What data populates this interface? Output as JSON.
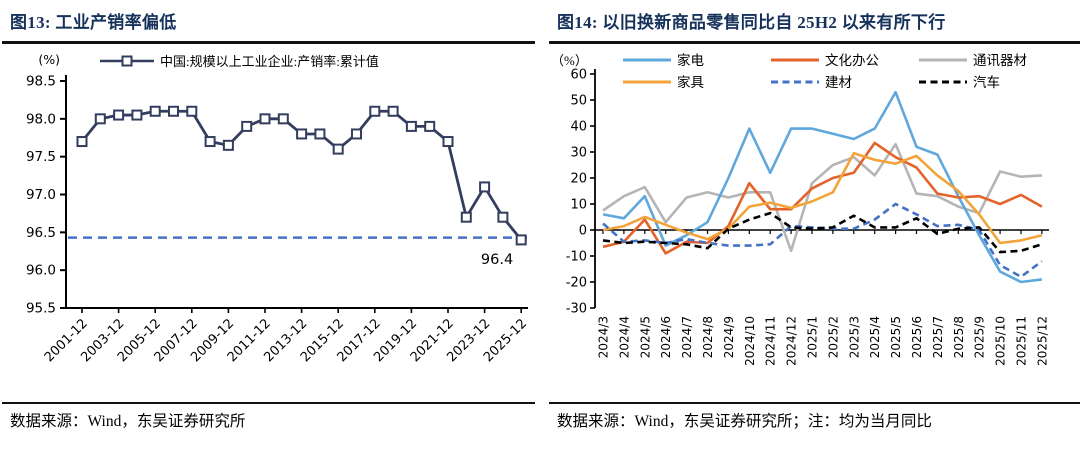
{
  "page": {
    "figures": [
      {
        "title": "图13:  工业产销率偏低",
        "source": "数据来源：Wind，东吴证券研究所"
      },
      {
        "title": "图14:  以旧换新商品零售同比自 25H2 以来有所下行",
        "source": "数据来源：Wind，东吴证券研究所；注：均为当月同比"
      }
    ]
  },
  "chart_data": [
    {
      "type": "line",
      "title": "工业产销率偏低",
      "ylabel": "(%)",
      "ylim": [
        95.5,
        98.5
      ],
      "yticks": [
        98.5,
        98.0,
        97.5,
        97.0,
        96.5,
        96.0,
        95.5
      ],
      "grid": false,
      "legend_position": "top",
      "categories": [
        "2001-12",
        "2002-12",
        "2003-12",
        "2004-12",
        "2005-12",
        "2006-12",
        "2007-12",
        "2008-12",
        "2009-12",
        "2010-12",
        "2011-12",
        "2012-12",
        "2013-12",
        "2014-12",
        "2015-12",
        "2016-12",
        "2017-12",
        "2018-12",
        "2019-12",
        "2020-12",
        "2021-12",
        "2022-12",
        "2023-12",
        "2024-12",
        "2025-12"
      ],
      "xtick_every": 2,
      "series": [
        {
          "name": "中国:规模以上工业企业:产销率:累计值",
          "color": "#333D5E",
          "marker": "square",
          "values": [
            97.7,
            98.0,
            98.05,
            98.05,
            98.1,
            98.1,
            98.1,
            97.7,
            97.65,
            97.9,
            98.0,
            98.0,
            97.8,
            97.8,
            97.6,
            97.8,
            98.1,
            98.1,
            97.9,
            97.9,
            97.7,
            96.7,
            97.1,
            96.7,
            96.4
          ]
        }
      ],
      "reference_line": {
        "value": 96.43,
        "style": "dashed",
        "color": "#4472C4"
      },
      "annotation": {
        "text": "96.4",
        "at_category": "2025-12",
        "value": 96.4
      }
    },
    {
      "type": "line",
      "title": "以旧换新商品零售同比自 25H2 以来有所下行",
      "ylabel": "（%）",
      "ylim": [
        -30,
        60
      ],
      "yticks": [
        60,
        50,
        40,
        30,
        20,
        10,
        0,
        -10,
        -20,
        -30
      ],
      "grid": false,
      "legend_position": "top",
      "legend_rows": [
        [
          "家电",
          "文化办公",
          "通讯器材"
        ],
        [
          "家具",
          "建材",
          "汽车"
        ]
      ],
      "categories": [
        "2024/3",
        "2024/4",
        "2024/5",
        "2024/6",
        "2024/7",
        "2024/8",
        "2024/9",
        "2024/10",
        "2024/11",
        "2024/12",
        "2025/1",
        "2025/2",
        "2025/3",
        "2025/4",
        "2025/5",
        "2025/6",
        "2025/7",
        "2025/8",
        "2025/9",
        "2025/10",
        "2025/11",
        "2025/12"
      ],
      "series": [
        {
          "name": "家电",
          "color": "#5FA8DE",
          "dash": "solid",
          "values": [
            6,
            4.5,
            13,
            -6,
            -2,
            3,
            20,
            39,
            22,
            39,
            39,
            37,
            35,
            39,
            53,
            32,
            29,
            13,
            -2,
            -16,
            -20,
            -19
          ]
        },
        {
          "name": "文化办公",
          "color": "#E4632A",
          "dash": "solid",
          "values": [
            -6.5,
            -4.5,
            4,
            -9,
            -4.5,
            -5,
            1.5,
            18,
            8,
            8,
            16,
            20,
            22,
            33.5,
            28,
            24,
            14,
            12.5,
            13,
            10,
            13.5,
            9
          ]
        },
        {
          "name": "通讯器材",
          "color": "#B5B5B5",
          "dash": "solid",
          "values": [
            7.5,
            13,
            16.5,
            3,
            12.5,
            14.5,
            12.5,
            14.5,
            14.5,
            -8,
            18,
            25,
            28,
            21,
            33,
            14,
            13,
            9,
            6.5,
            22.5,
            20.5,
            21
          ]
        },
        {
          "name": "家具",
          "color": "#F2A43A",
          "dash": "solid",
          "values": [
            0,
            1.5,
            5,
            2,
            -1,
            -3.5,
            0.5,
            9,
            10.5,
            8.5,
            11,
            14.5,
            29.5,
            27,
            25.5,
            28.5,
            21,
            15,
            6,
            -5,
            -4,
            -2
          ]
        },
        {
          "name": "建材",
          "color": "#4472C4",
          "dash": "dashed",
          "values": [
            2.5,
            -4.5,
            -4,
            -5,
            -3.5,
            -5,
            -6,
            -6,
            -5.5,
            1.5,
            1,
            0.5,
            0.5,
            4,
            10,
            6,
            1.5,
            2,
            0,
            -13.5,
            -18,
            -12
          ]
        },
        {
          "name": "汽车",
          "color": "#000000",
          "dash": "dashed",
          "values": [
            -4,
            -5,
            -4.5,
            -5,
            -5.5,
            -7,
            0.5,
            4,
            6.5,
            1,
            0.5,
            1,
            5.5,
            1,
            1,
            4.5,
            -1.5,
            0.5,
            1,
            -8.5,
            -8,
            -5.5
          ]
        }
      ]
    }
  ]
}
